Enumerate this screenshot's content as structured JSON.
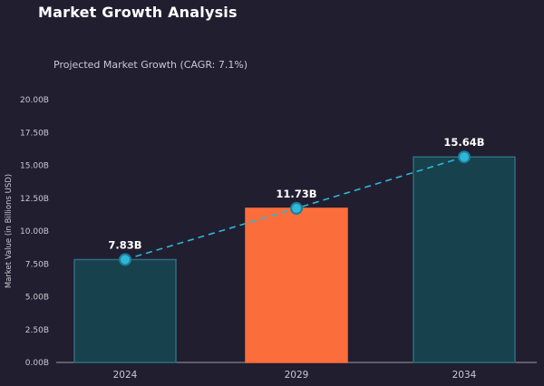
{
  "chart_data": {
    "type": "bar",
    "title": "Market Growth Analysis",
    "subtitle": "Projected Market Growth (CAGR: 7.1%)",
    "categories": [
      "2024",
      "2029",
      "2034"
    ],
    "values": [
      7.83,
      11.73,
      15.64
    ],
    "value_labels": [
      "7.83B",
      "11.73B",
      "15.64B"
    ],
    "ylabel": "Market Value (in Billions USD)",
    "ylim": [
      0,
      20
    ],
    "ytick_step": 2.5,
    "ytick_labels": [
      "0.00B",
      "2.50B",
      "5.00B",
      "7.50B",
      "10.00B",
      "12.50B",
      "15.00B",
      "17.50B",
      "20.00B"
    ],
    "grid": false,
    "legend_position": "none",
    "colors": {
      "background": "#211e30",
      "bar_fills": [
        "#17414d",
        "#fb6d3b",
        "#17414d"
      ],
      "bar_strokes": [
        "#2f6e7e",
        "#fb6d3b",
        "#2f6e7e"
      ],
      "trend_line": "#2db7d8",
      "marker_fill": "#2db7d8",
      "marker_stroke": "#1a7e9b",
      "value_label": "#ffffff",
      "tick_label": "#c9c9d1",
      "axis_line": "rgba(255,255,255,0.55)"
    }
  }
}
